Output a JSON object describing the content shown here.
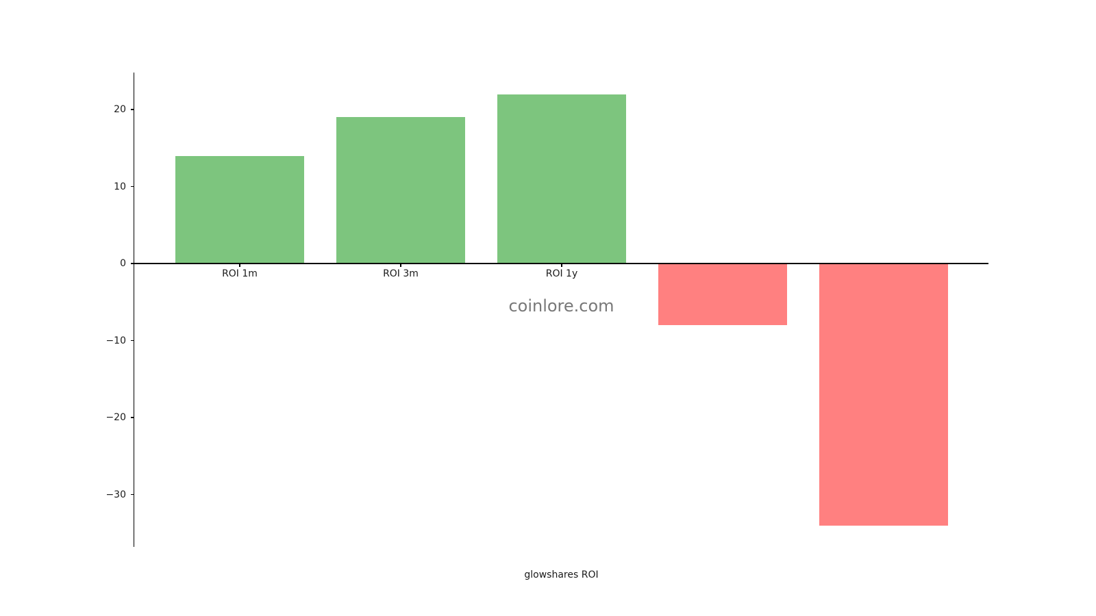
{
  "figure": {
    "background": "#ffffff"
  },
  "chart_data": {
    "type": "bar",
    "title": "",
    "xlabel": "glowshares ROI",
    "ylabel": "",
    "categories": [
      "ROI 1m",
      "ROI 3m",
      "ROI 1y",
      "",
      ""
    ],
    "values": [
      14,
      19,
      22,
      -8,
      -34
    ],
    "yticks": [
      20,
      10,
      0,
      -10,
      -20,
      -30
    ],
    "ytick_labels": [
      "20",
      "10",
      "0",
      "−10",
      "−20",
      "−30"
    ],
    "ylim": [
      -36.8,
      24.8
    ],
    "grid": false,
    "legend": null,
    "watermark": "coinlore.com",
    "colors": {
      "positive_bar": "#7dc57e",
      "negative_bar": "#ff8080",
      "axis": "#000000",
      "tick_label": "#1a1a1a",
      "watermark": "#787878",
      "background": "#ffffff"
    }
  }
}
